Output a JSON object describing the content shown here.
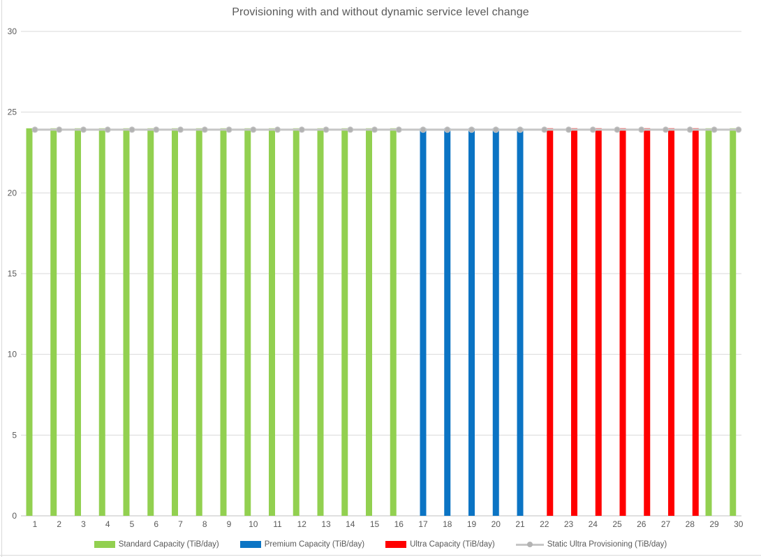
{
  "chart_data": {
    "type": "bar",
    "title": "Provisioning with and without dynamic service level change",
    "categories": [
      "1",
      "2",
      "3",
      "4",
      "5",
      "6",
      "7",
      "8",
      "9",
      "10",
      "11",
      "12",
      "13",
      "14",
      "15",
      "16",
      "17",
      "18",
      "19",
      "20",
      "21",
      "22",
      "23",
      "24",
      "25",
      "26",
      "27",
      "28",
      "29",
      "30"
    ],
    "series": [
      {
        "name": "Standard Capacity (TiB/day)",
        "type": "bar",
        "color": "#92D050",
        "values": [
          24,
          24,
          24,
          24,
          24,
          24,
          24,
          24,
          24,
          24,
          24,
          24,
          24,
          24,
          24,
          24,
          0,
          0,
          0,
          0,
          0,
          0,
          0,
          0,
          0,
          0,
          0,
          0,
          24,
          24
        ]
      },
      {
        "name": "Premium Capacity (TiB/day)",
        "type": "bar",
        "color": "#0B74C4",
        "values": [
          0,
          0,
          0,
          0,
          0,
          0,
          0,
          0,
          0,
          0,
          0,
          0,
          0,
          0,
          0,
          0,
          24,
          24,
          24,
          24,
          24,
          0,
          0,
          0,
          0,
          0,
          0,
          0,
          0,
          0
        ]
      },
      {
        "name": "Ultra Capacity (TiB/day)",
        "type": "bar",
        "color": "#FF0000",
        "values": [
          0,
          0,
          0,
          0,
          0,
          0,
          0,
          0,
          0,
          0,
          0,
          0,
          0,
          0,
          0,
          0,
          0,
          0,
          0,
          0,
          0,
          24,
          24,
          24,
          24,
          24,
          24,
          24,
          0,
          0
        ]
      },
      {
        "name": "Static Ultra Provisioning (TiB/day)",
        "type": "line",
        "color": "#C6C6C6",
        "marker": "circle",
        "marker_color": "#B3B3B3",
        "values": [
          24,
          24,
          24,
          24,
          24,
          24,
          24,
          24,
          24,
          24,
          24,
          24,
          24,
          24,
          24,
          24,
          24,
          24,
          24,
          24,
          24,
          24,
          24,
          24,
          24,
          24,
          24,
          24,
          24,
          24
        ]
      }
    ],
    "xlabel": "",
    "ylabel": "",
    "ylim": [
      0,
      30
    ],
    "yticks": [
      0,
      5,
      10,
      15,
      20,
      25,
      30
    ],
    "grid": true,
    "legend_position": "bottom",
    "axis_text_color": "#595959",
    "gridline_color": "#D9D9D9",
    "axis_line_color": "#C0C0C0",
    "border_color": "#D9D9D9"
  }
}
